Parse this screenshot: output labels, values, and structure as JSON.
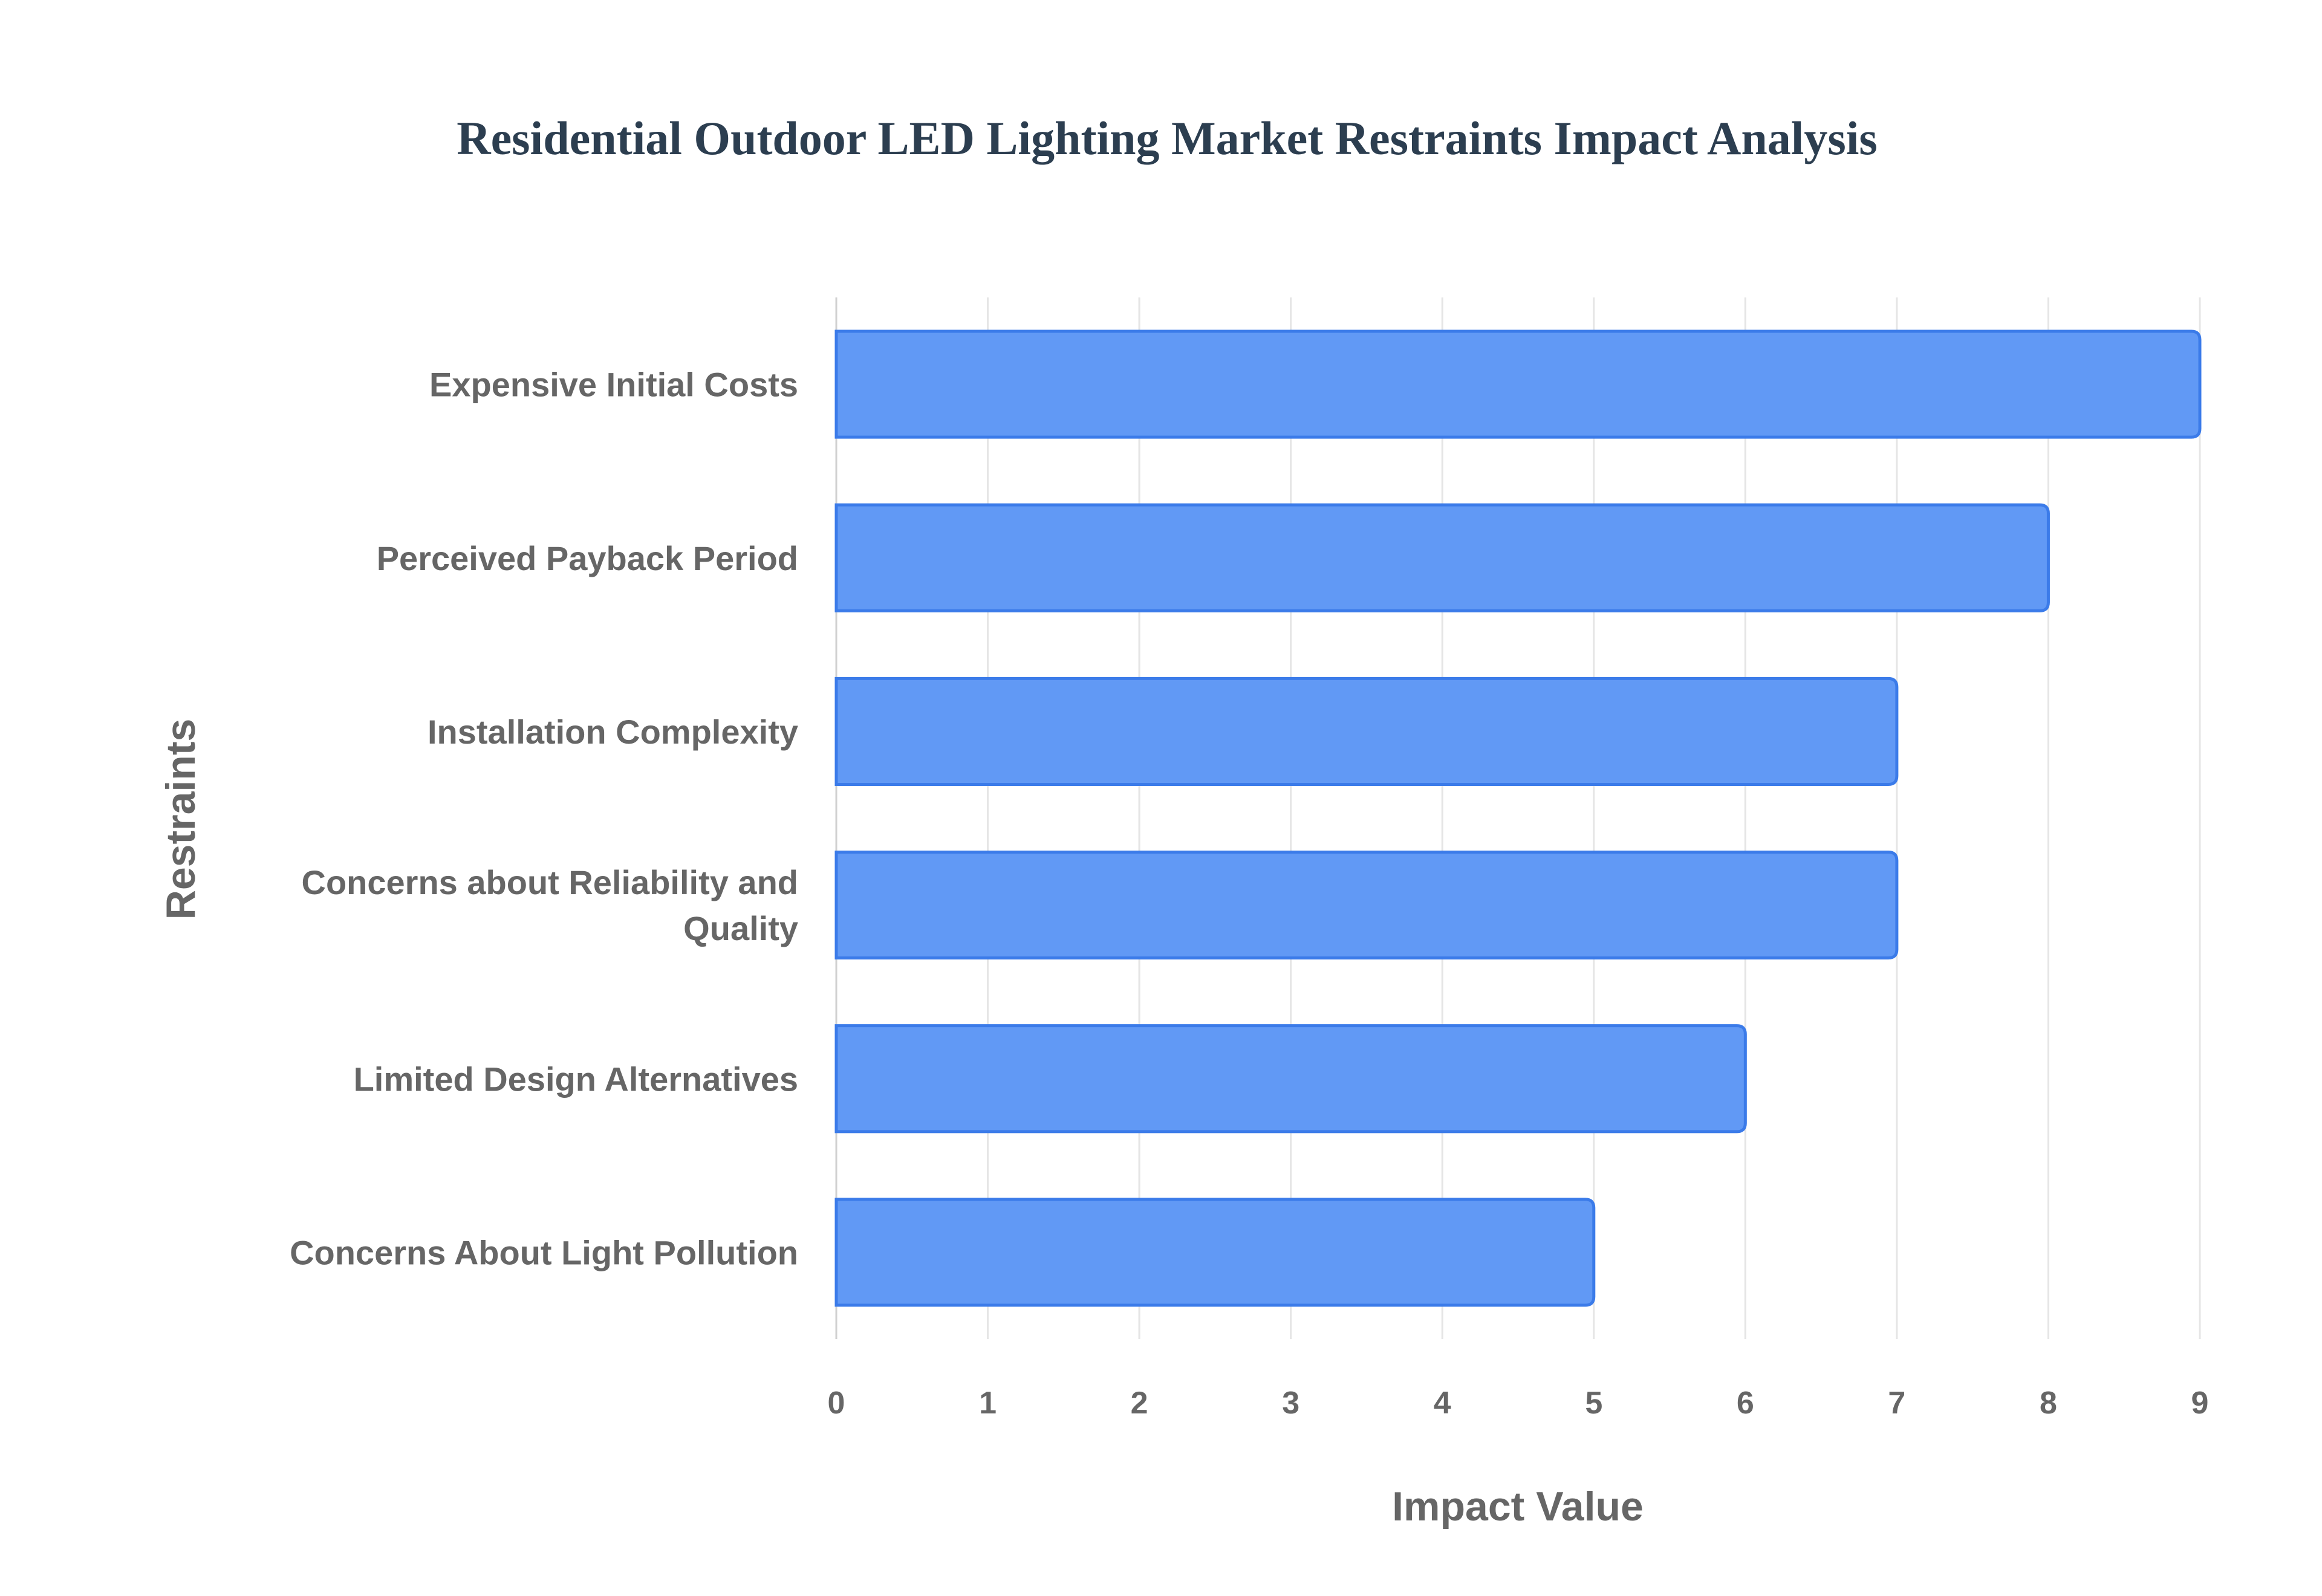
{
  "chart_data": {
    "type": "bar",
    "orientation": "horizontal",
    "title": "Residential Outdoor LED Lighting Market Restraints Impact Analysis",
    "xlabel": "Impact Value",
    "ylabel": "Restraints",
    "categories": [
      "Expensive Initial Costs",
      "Perceived Payback Period",
      "Installation Complexity",
      "Concerns about Reliability and Quality",
      "Limited Design Alternatives",
      "Concerns About Light Pollution"
    ],
    "category_lines": [
      [
        "Expensive Initial Costs"
      ],
      [
        "Perceived Payback Period"
      ],
      [
        "Installation Complexity"
      ],
      [
        "Concerns about Reliability and",
        "Quality"
      ],
      [
        "Limited Design Alternatives"
      ],
      [
        "Concerns About Light Pollution"
      ]
    ],
    "values": [
      9,
      8,
      7,
      7,
      6,
      5
    ],
    "xlim": [
      0,
      9
    ],
    "xticks": [
      "0",
      "1",
      "2",
      "3",
      "4",
      "5",
      "6",
      "7",
      "8",
      "9"
    ],
    "grid": true,
    "legend": "none",
    "colors": {
      "bar_fill": "#6199f5",
      "bar_border": "#3b7be9",
      "grid": "#e5e5e5",
      "title": "#2c3e50",
      "text": "#666666"
    }
  }
}
